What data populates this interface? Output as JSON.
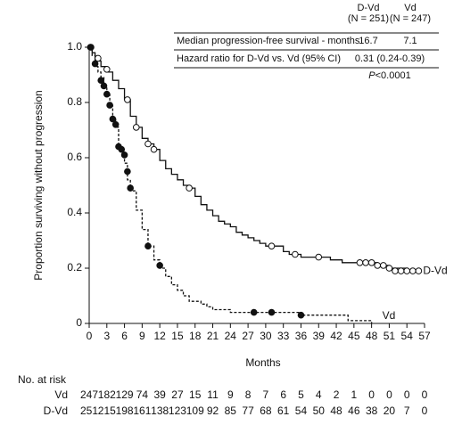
{
  "chart_data": {
    "type": "line",
    "step": true,
    "xlabel": "Months",
    "ylabel": "Proportion surviving without progression",
    "xlim": [
      0,
      57
    ],
    "ylim": [
      0,
      1
    ],
    "xticks": [
      0,
      3,
      6,
      9,
      12,
      15,
      18,
      21,
      24,
      27,
      30,
      33,
      36,
      39,
      42,
      45,
      48,
      51,
      54,
      57
    ],
    "yticks": [
      0,
      0.2,
      0.4,
      0.6,
      0.8,
      {
        "value": 1,
        "label": "1.0"
      }
    ],
    "series": [
      {
        "name": "D-Vd",
        "color": "#111111",
        "dash": false,
        "censor_fill": "#ffffff",
        "x": [
          0,
          0.5,
          1,
          2,
          3,
          4,
          5,
          6,
          7,
          8,
          9,
          10,
          11,
          12,
          13,
          14,
          15,
          16,
          17,
          18,
          19,
          20,
          21,
          22,
          23,
          24,
          25,
          26,
          27,
          28,
          29,
          30,
          31,
          33,
          34,
          36,
          40,
          41,
          43,
          46,
          49,
          51,
          54,
          56
        ],
        "values": [
          1.0,
          0.98,
          0.95,
          0.93,
          0.91,
          0.88,
          0.85,
          0.81,
          0.75,
          0.71,
          0.67,
          0.65,
          0.63,
          0.59,
          0.56,
          0.54,
          0.52,
          0.5,
          0.49,
          0.46,
          0.43,
          0.41,
          0.39,
          0.37,
          0.36,
          0.35,
          0.33,
          0.32,
          0.31,
          0.3,
          0.29,
          0.28,
          0.28,
          0.26,
          0.25,
          0.24,
          0.24,
          0.23,
          0.22,
          0.22,
          0.21,
          0.2,
          0.19,
          0.19
        ],
        "censor_x": [
          0.3,
          1.5,
          3,
          6.5,
          8,
          10,
          11,
          17,
          31,
          35,
          39,
          46,
          47,
          48,
          49,
          50,
          51,
          52,
          53,
          54,
          55,
          56
        ],
        "censor_values": [
          1.0,
          0.96,
          0.92,
          0.81,
          0.71,
          0.65,
          0.63,
          0.49,
          0.28,
          0.25,
          0.24,
          0.22,
          0.22,
          0.22,
          0.21,
          0.21,
          0.2,
          0.19,
          0.19,
          0.19,
          0.19,
          0.19
        ]
      },
      {
        "name": "Vd",
        "color": "#111111",
        "dash": true,
        "censor_fill": "#111111",
        "x": [
          0,
          0.5,
          1,
          1.5,
          2,
          2.5,
          3,
          3.5,
          4,
          4.5,
          5,
          5.5,
          6,
          6.5,
          7,
          8,
          9,
          10,
          11,
          12,
          13,
          14,
          15,
          16,
          17,
          19,
          20,
          21,
          24,
          27,
          36,
          40,
          44,
          47,
          48
        ],
        "values": [
          1.0,
          0.97,
          0.93,
          0.91,
          0.89,
          0.86,
          0.83,
          0.79,
          0.74,
          0.71,
          0.64,
          0.62,
          0.58,
          0.52,
          0.48,
          0.41,
          0.34,
          0.28,
          0.23,
          0.2,
          0.17,
          0.14,
          0.12,
          0.1,
          0.08,
          0.07,
          0.06,
          0.05,
          0.04,
          0.04,
          0.03,
          0.03,
          0.01,
          0.01,
          0.0
        ],
        "censor_x": [
          0.2,
          1,
          2,
          2.5,
          3,
          3.5,
          4,
          4.5,
          5,
          5.5,
          6,
          6.5,
          7,
          10,
          12,
          28,
          31,
          36
        ],
        "censor_values": [
          1.0,
          0.94,
          0.88,
          0.86,
          0.83,
          0.79,
          0.74,
          0.72,
          0.64,
          0.63,
          0.61,
          0.55,
          0.49,
          0.28,
          0.21,
          0.04,
          0.04,
          0.03
        ]
      }
    ],
    "summary_table": {
      "columns": [
        [
          "D-Vd",
          "(N = 251)"
        ],
        [
          "Vd",
          "(N = 247)"
        ]
      ],
      "rows": [
        {
          "label": "Median progression-free survival - months",
          "cells": [
            "16.7",
            "7.1"
          ]
        },
        {
          "label": "Hazard ratio for D-Vd vs. Vd (95% CI)",
          "merged": "0.31 (0.24-0.39)"
        }
      ],
      "p_symbol": "P",
      "p_value": "<0.0001"
    },
    "risk_table": {
      "label": "No. at risk",
      "rows": [
        {
          "name": "Vd",
          "values": [
            247,
            182,
            129,
            74,
            39,
            27,
            15,
            11,
            9,
            8,
            7,
            6,
            5,
            4,
            2,
            1,
            0,
            0,
            0,
            0
          ]
        },
        {
          "name": "D-Vd",
          "values": [
            251,
            215,
            198,
            161,
            138,
            123,
            109,
            92,
            85,
            77,
            68,
            61,
            54,
            50,
            48,
            46,
            38,
            20,
            7,
            0
          ]
        }
      ]
    }
  }
}
